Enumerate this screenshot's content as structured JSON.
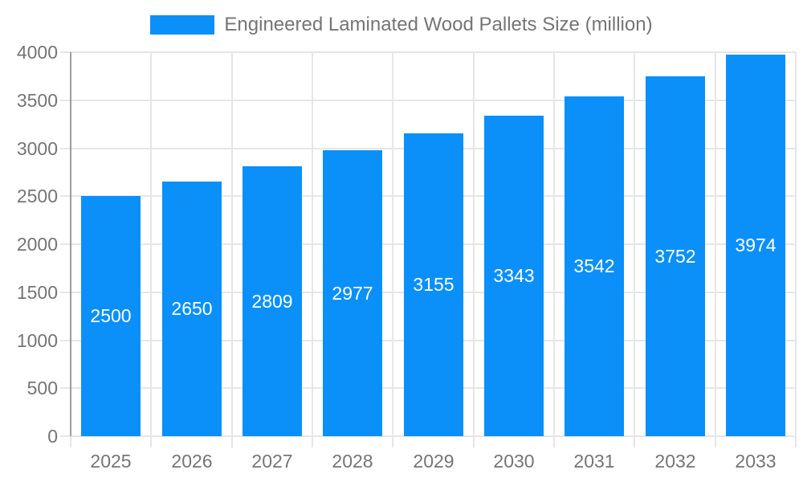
{
  "chart_data": {
    "type": "bar",
    "title": "Engineered Laminated Wood Pallets Size (million)",
    "categories": [
      "2025",
      "2026",
      "2027",
      "2028",
      "2029",
      "2030",
      "2031",
      "2032",
      "2033"
    ],
    "values": [
      2500,
      2650,
      2809,
      2977,
      3155,
      3343,
      3542,
      3752,
      3974
    ],
    "xlabel": "",
    "ylabel": "",
    "ylim": [
      0,
      4000
    ],
    "yticks": [
      0,
      500,
      1000,
      1500,
      2000,
      2500,
      3000,
      3500,
      4000
    ],
    "grid": true,
    "legend_position": "top-center",
    "colors": {
      "bar": "#0a90f8",
      "bar_label": "#ffffff",
      "axis_text": "#757575",
      "grid_line": "#e6e6e6",
      "axis_line": "#9e9e9e",
      "background": "#ffffff"
    }
  }
}
